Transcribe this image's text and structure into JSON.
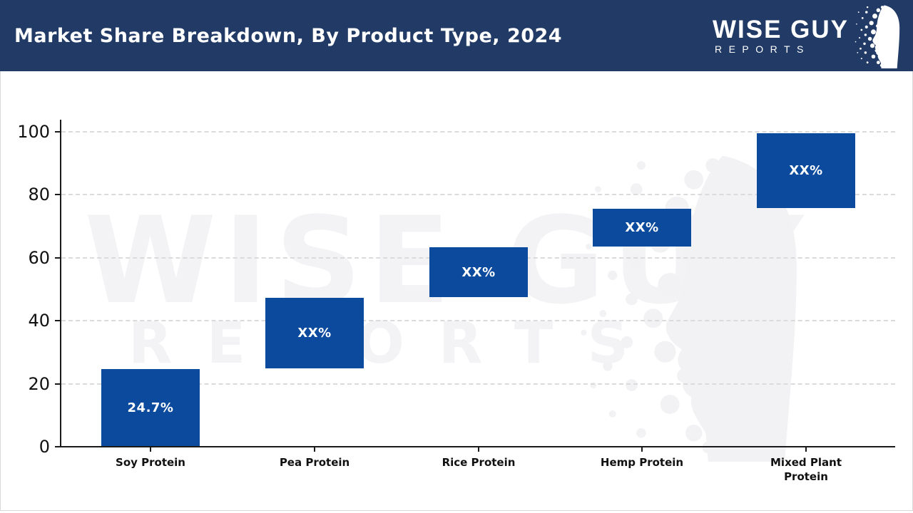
{
  "header": {
    "title": "Market Share Breakdown, By Product Type, 2024",
    "brand": {
      "line1": "WISE GUY",
      "line2": "REPORTS"
    },
    "bg_color": "#213A66"
  },
  "watermark": {
    "line1": "WISE GUY",
    "line2": "REPORTS"
  },
  "chart_data": {
    "type": "bar",
    "subtype": "waterfall-floating-bars",
    "title": "Market Share Breakdown, By Product Type, 2024",
    "unit": "%",
    "categories": [
      "Soy Protein",
      "Pea Protein",
      "Rice Protein",
      "Hemp Protein",
      "Mixed Plant Protein"
    ],
    "segments": [
      {
        "category": "Soy Protein",
        "start": 0,
        "end": 24.7,
        "value_label": "24.7%"
      },
      {
        "category": "Pea Protein",
        "start": 24.9,
        "end": 47.3,
        "value_label": "XX%"
      },
      {
        "category": "Rice Protein",
        "start": 47.5,
        "end": 63.3,
        "value_label": "XX%"
      },
      {
        "category": "Hemp Protein",
        "start": 63.6,
        "end": 75.6,
        "value_label": "XX%"
      },
      {
        "category": "Mixed Plant Protein",
        "start": 75.8,
        "end": 99.5,
        "value_label": "XX%"
      }
    ],
    "yticks": [
      0,
      20,
      40,
      60,
      80,
      100
    ],
    "ylim": [
      0,
      105
    ],
    "bar_color": "#0B4A9D",
    "grid": "horizontal-dashed",
    "legend": "none"
  }
}
